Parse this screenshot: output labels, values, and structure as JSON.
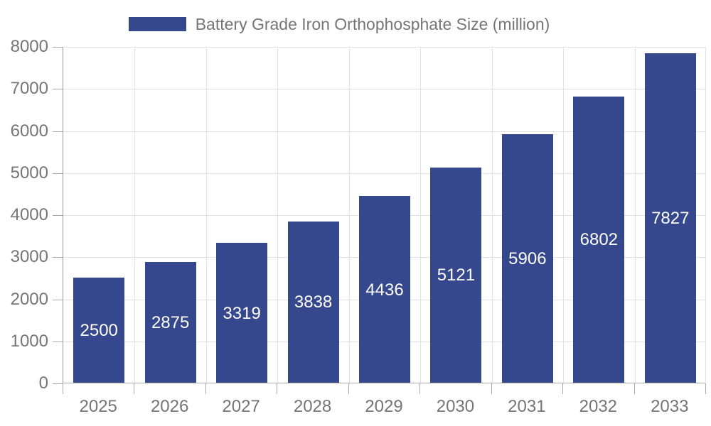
{
  "legend": {
    "label": "Battery Grade Iron Orthophosphate Size (million)",
    "swatch_color": "#35478D"
  },
  "chart_data": {
    "type": "bar",
    "title": "Battery Grade Iron Orthophosphate Size (million)",
    "categories": [
      "2025",
      "2026",
      "2027",
      "2028",
      "2029",
      "2030",
      "2031",
      "2032",
      "2033"
    ],
    "values": [
      2500,
      2875,
      3319,
      3838,
      4436,
      5121,
      5906,
      6802,
      7827
    ],
    "xlabel": "",
    "ylabel": "",
    "ylim": [
      0,
      8000
    ],
    "yticks": [
      0,
      1000,
      2000,
      3000,
      4000,
      5000,
      6000,
      7000,
      8000
    ],
    "grid": true,
    "legend_position": "top-center",
    "bar_color": "#35478D",
    "value_label_color": "#FFFFFF",
    "axis_label_color": "#757575",
    "gridline_color": "#E2E2E2",
    "axis_line_color": "#999999"
  }
}
